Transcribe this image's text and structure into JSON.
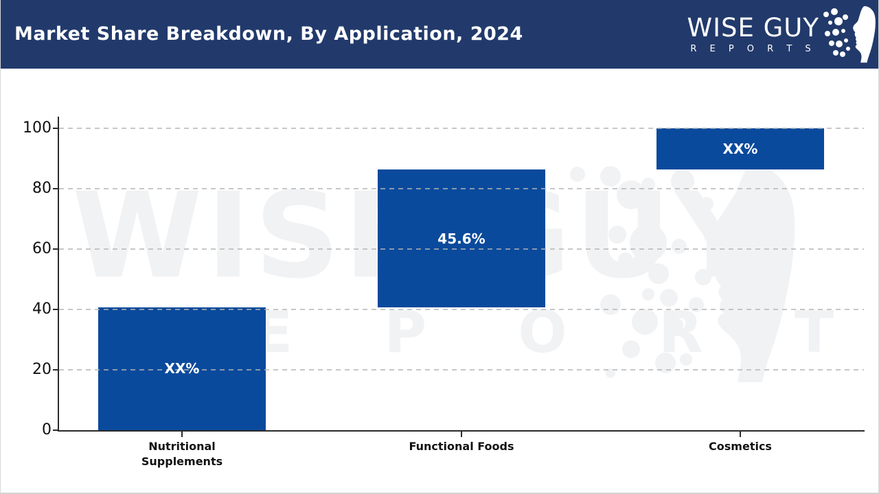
{
  "header": {
    "title": "Market Share Breakdown, By Application, 2024",
    "logo": {
      "line1": "WISE GUY",
      "line2": "R E P O R T S",
      "face_icon": "dotted-head-profile"
    }
  },
  "watermark": {
    "line1": "WISE GUY",
    "line2": "R E P O R T S",
    "face_icon": "dotted-head-profile"
  },
  "colors": {
    "header_bg": "#223a6b",
    "bar": "#0a4a9c",
    "bar_label": "#ffffff",
    "grid": "#d9d9d9",
    "axis": "#2a2a2a",
    "text": "#111111",
    "watermark": "#f1f2f4"
  },
  "chart_data": {
    "type": "bar",
    "subtype": "waterfall",
    "title": "Market Share Breakdown, By Application, 2024",
    "categories": [
      "Nutritional Supplements",
      "Functional Foods",
      "Cosmetics"
    ],
    "series": [
      {
        "name": "Market share (%)",
        "segments": [
          {
            "category": "Nutritional Supplements",
            "start": 0,
            "end": 40.7,
            "label": "XX%"
          },
          {
            "category": "Functional Foods",
            "start": 40.7,
            "end": 86.3,
            "label": "45.6%"
          },
          {
            "category": "Cosmetics",
            "start": 86.3,
            "end": 100,
            "label": "XX%"
          }
        ]
      }
    ],
    "xlabel": "",
    "ylabel": "",
    "ylim": [
      0,
      100
    ],
    "yticks": [
      0,
      20,
      40,
      60,
      80,
      100
    ],
    "grid": "horizontal-dashed",
    "legend": "none"
  }
}
